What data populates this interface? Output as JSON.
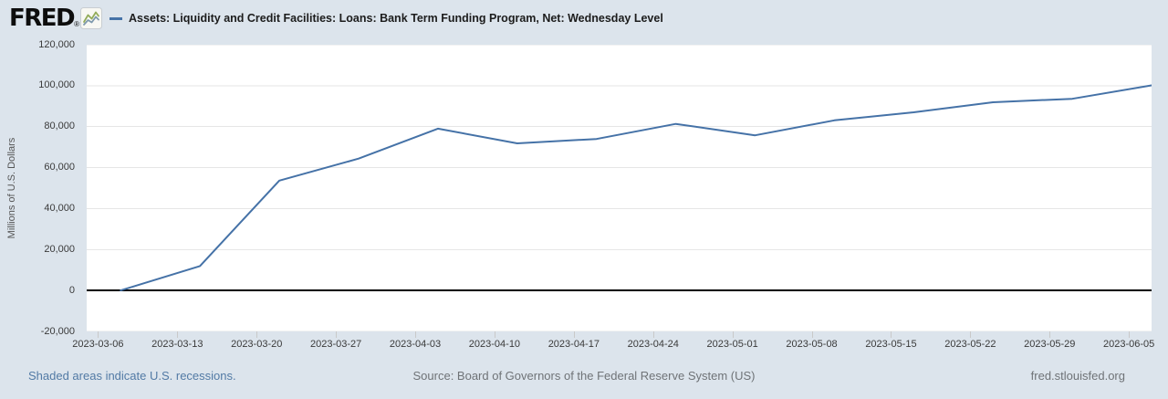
{
  "header": {
    "logo_text": "FRED",
    "registered_mark": "®",
    "logo_icon": "line-chart-icon",
    "series_title": "Assets: Liquidity and Credit Facilities: Loans: Bank Term Funding Program, Net: Wednesday Level"
  },
  "chart_data": {
    "type": "line",
    "title": "Assets: Liquidity and Credit Facilities: Loans: Bank Term Funding Program, Net: Wednesday Level",
    "ylabel": "Millions of U.S. Dollars",
    "xlabel": "",
    "x": [
      "2023-03-08",
      "2023-03-15",
      "2023-03-22",
      "2023-03-29",
      "2023-04-05",
      "2023-04-12",
      "2023-04-19",
      "2023-04-26",
      "2023-05-03",
      "2023-05-10",
      "2023-05-17",
      "2023-05-24",
      "2023-05-31",
      "2023-06-07"
    ],
    "values": [
      0,
      11943,
      53669,
      64403,
      79021,
      71837,
      73982,
      81327,
      75778,
      83101,
      87006,
      91907,
      93615,
      100161
    ],
    "x_tick_labels": [
      "2023-03-06",
      "2023-03-13",
      "2023-03-20",
      "2023-03-27",
      "2023-04-03",
      "2023-04-10",
      "2023-04-17",
      "2023-04-24",
      "2023-05-01",
      "2023-05-08",
      "2023-05-15",
      "2023-05-22",
      "2023-05-29",
      "2023-06-05"
    ],
    "y_ticks": [
      120000,
      100000,
      80000,
      60000,
      40000,
      20000,
      0,
      -20000
    ],
    "y_tick_labels": [
      "120,000",
      "100,000",
      "80,000",
      "60,000",
      "40,000",
      "20,000",
      "0",
      "-20,000"
    ],
    "x_axis_range": [
      "2023-03-05",
      "2023-06-07"
    ],
    "ylim": [
      -20000,
      120000
    ],
    "grid": true,
    "legend_position": "top-left",
    "line_color": "#4572a7",
    "zero_line_color": "#000000",
    "gridline_color": "#e6e6e6"
  },
  "colors": {
    "background": "#dce4ec",
    "plot_background": "#ffffff",
    "link_blue": "#527aa5",
    "footer_gray": "#6f7377"
  },
  "footer": {
    "recessions_note": "Shaded areas indicate U.S. recessions.",
    "source": "Source: Board of Governors of the Federal Reserve System (US)",
    "site_link": "fred.stlouisfed.org"
  }
}
